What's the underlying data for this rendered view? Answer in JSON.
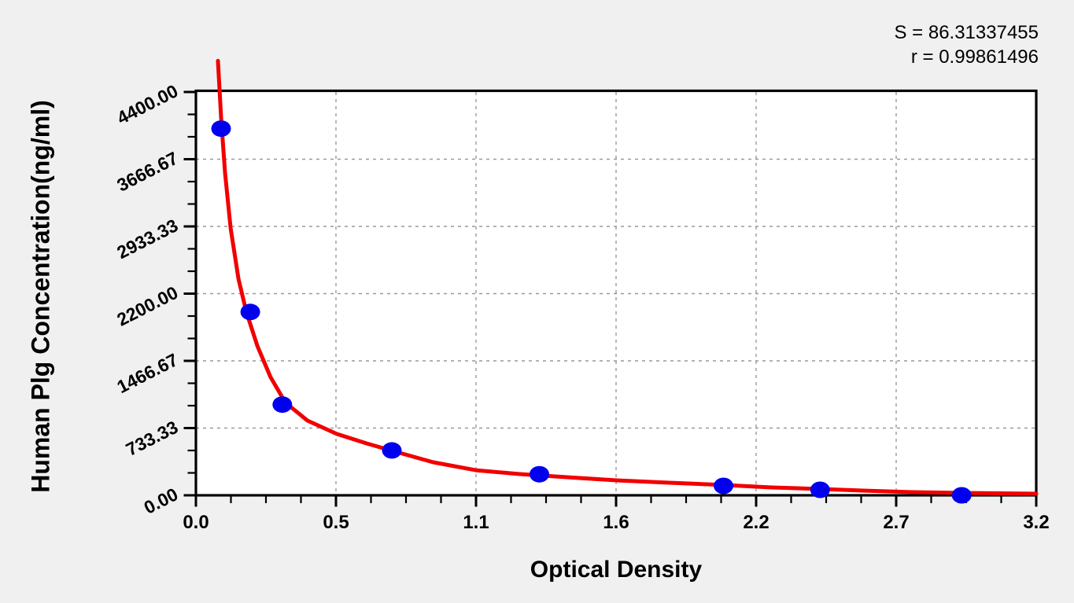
{
  "stats": {
    "s": "S = 86.31337455",
    "r": "r = 0.99861496"
  },
  "chart_data": {
    "type": "scatter",
    "title": "",
    "xlabel": "Optical Density",
    "ylabel": "Human Plg Concentration(ng/ml)",
    "xlim": [
      0,
      3.2
    ],
    "ylim": [
      0,
      4400
    ],
    "x_tick_labels": [
      "0.0",
      "0.5",
      "1.1",
      "1.6",
      "2.2",
      "2.7",
      "3.2"
    ],
    "y_tick_labels": [
      "0.00",
      "733.33",
      "1466.67",
      "2200.00",
      "2933.33",
      "3666.67",
      "4400.00"
    ],
    "x_minor_divisions": 4,
    "y_minor_divisions": 3,
    "grid": "dashed gray lines at major ticks",
    "legend_position": "none",
    "fit_stats": {
      "S": 86.31337455,
      "r": 0.99861496
    },
    "series": [
      {
        "name": "standard-points",
        "type": "scatter",
        "color": "#0000ee",
        "points": [
          [
            0.096,
            4000
          ],
          [
            0.207,
            2000
          ],
          [
            0.329,
            990
          ],
          [
            0.746,
            490
          ],
          [
            1.308,
            230
          ],
          [
            2.009,
            103
          ],
          [
            2.377,
            60
          ],
          [
            2.916,
            0
          ]
        ]
      },
      {
        "name": "fit-curve",
        "type": "line",
        "color": "#f20000",
        "points": [
          [
            0.084,
            4740
          ],
          [
            0.096,
            4120
          ],
          [
            0.111,
            3520
          ],
          [
            0.132,
            2915
          ],
          [
            0.162,
            2360
          ],
          [
            0.192,
            2000
          ],
          [
            0.234,
            1630
          ],
          [
            0.284,
            1290
          ],
          [
            0.341,
            1010
          ],
          [
            0.425,
            815
          ],
          [
            0.536,
            670
          ],
          [
            0.65,
            566
          ],
          [
            0.754,
            480
          ],
          [
            0.904,
            360
          ],
          [
            1.066,
            274
          ],
          [
            1.233,
            232
          ],
          [
            1.413,
            197
          ],
          [
            1.602,
            163
          ],
          [
            1.802,
            137
          ],
          [
            2.009,
            112
          ],
          [
            2.191,
            86
          ],
          [
            2.377,
            69
          ],
          [
            2.55,
            51
          ],
          [
            2.73,
            34
          ],
          [
            2.916,
            26
          ],
          [
            3.2,
            17
          ]
        ]
      }
    ],
    "colors": {
      "background": "#f0f0f0",
      "plot_background": "#ffffff",
      "axis": "#000000",
      "grid": "#999999",
      "curve": "#f20000",
      "points": "#0000ee"
    }
  }
}
